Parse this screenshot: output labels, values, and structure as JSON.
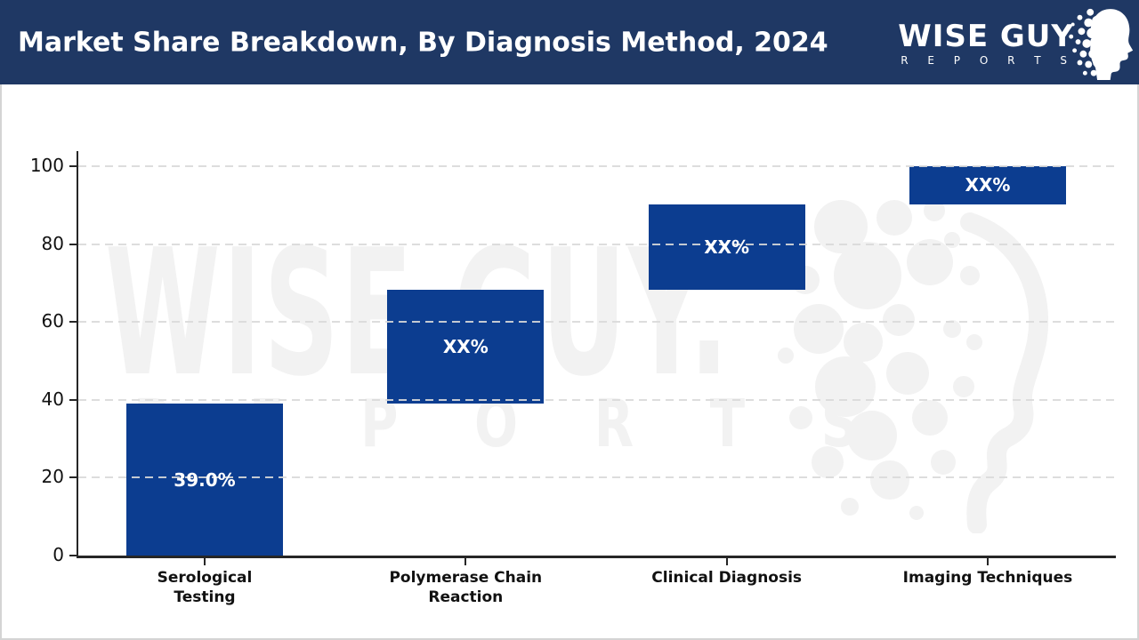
{
  "header": {
    "title": "Market Share Breakdown, By Diagnosis Method, 2024",
    "logo": {
      "line1": "WISE GUY",
      "line2": "R E P O R T S"
    }
  },
  "watermark": {
    "line1": "WISE GUY.",
    "line2": "R E P O R T S"
  },
  "colors": {
    "header_bg": "#1f3864",
    "title_text": "#ffffff",
    "bar": "#0c3d90",
    "bar_label": "#ffffff",
    "axis": "#262626",
    "grid": "#d9d9d9",
    "tick_text": "#111111",
    "watermark": "#f2f2f2",
    "page_border": "#d4d4d4"
  },
  "chart_data": {
    "type": "bar",
    "subtype": "waterfall",
    "title": "Market Share Breakdown, By Diagnosis Method, 2024",
    "categories": [
      "Serological Testing",
      "Polymerase Chain Reaction",
      "Clinical Diagnosis",
      "Imaging Techniques"
    ],
    "category_label_lines": [
      [
        "Serological",
        "Testing"
      ],
      [
        "Polymerase Chain",
        "Reaction"
      ],
      [
        "Clinical Diagnosis"
      ],
      [
        "Imaging Techniques"
      ]
    ],
    "segments": [
      {
        "category": "Serological Testing",
        "start": 0,
        "end": 39.0,
        "label": "39.0%"
      },
      {
        "category": "Polymerase Chain Reaction",
        "start": 39.0,
        "end": 68.2,
        "label": "XX%"
      },
      {
        "category": "Clinical Diagnosis",
        "start": 68.2,
        "end": 90.2,
        "label": "XX%"
      },
      {
        "category": "Imaging Techniques",
        "start": 90.2,
        "end": 100.0,
        "label": "XX%"
      }
    ],
    "values": [
      39.0,
      29.2,
      22.0,
      9.8
    ],
    "xlabel": "",
    "ylabel": "",
    "ylim": [
      0,
      100
    ],
    "yticks": [
      0,
      20,
      40,
      60,
      80,
      100
    ],
    "grid": "horizontal-dashed",
    "axisbelow": false,
    "legend": "none"
  }
}
